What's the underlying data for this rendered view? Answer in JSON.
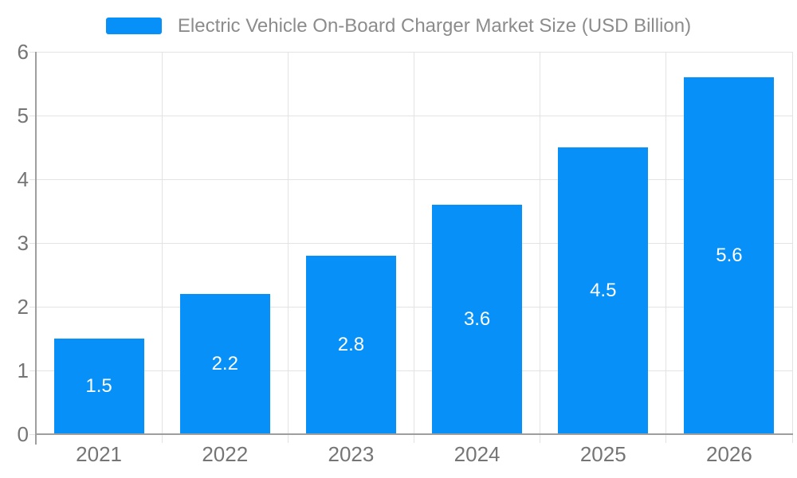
{
  "chart_data": {
    "type": "bar",
    "title": "Electric Vehicle On-Board Charger Market Size (USD Billion)",
    "categories": [
      "2021",
      "2022",
      "2023",
      "2024",
      "2025",
      "2026"
    ],
    "values": [
      1.5,
      2.2,
      2.8,
      3.6,
      4.5,
      5.6
    ],
    "value_labels": [
      "1.5",
      "2.2",
      "2.8",
      "3.6",
      "4.5",
      "5.6"
    ],
    "xlabel": "",
    "ylabel": "",
    "ylim": [
      0,
      6
    ],
    "y_ticks": [
      "0",
      "1",
      "2",
      "3",
      "4",
      "5",
      "6"
    ],
    "grid": true,
    "legend": {
      "position": "top-center",
      "items": [
        {
          "label": "Electric Vehicle On-Board Charger Market Size (USD Billion)",
          "swatch_color": "#0790f8"
        }
      ]
    },
    "colors": {
      "bar": "#0790f8",
      "bar_label": "#ffffff",
      "grid_line": "#e3e3e3",
      "axis_line": "#9e9e9e",
      "tick_mark": "#e3e3e3",
      "tick_label": "#757575",
      "legend_text": "#8c8c8c",
      "background": "#ffffff"
    }
  }
}
